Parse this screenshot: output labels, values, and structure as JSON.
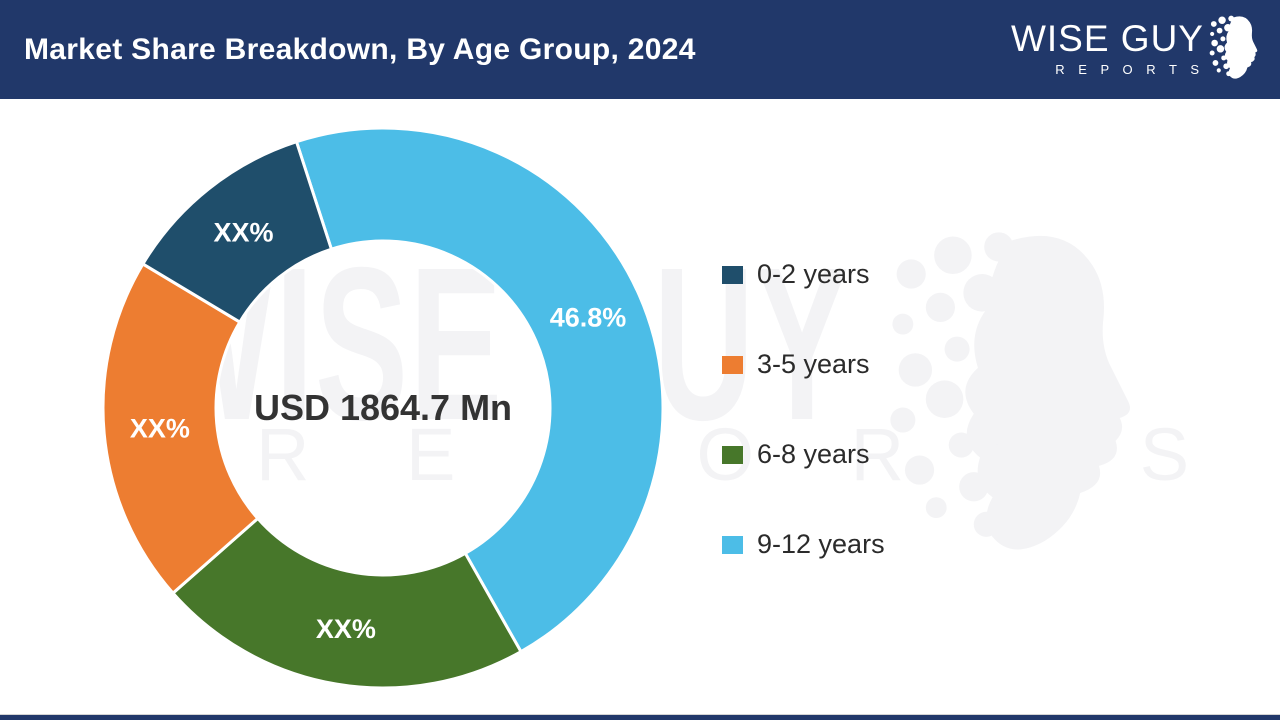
{
  "header": {
    "title": "Market Share Breakdown, By Age Group, 2024",
    "logo": {
      "name": "WISE GUY",
      "tagline": "R E P O R T S"
    }
  },
  "watermark": {
    "text_primary": "WISE GUY",
    "text_secondary": "R E P O R T S"
  },
  "chart_data": {
    "type": "pie",
    "subtype": "donut",
    "title": "Market Share Breakdown, By Age Group, 2024",
    "center_label": "USD 1864.7 Mn",
    "start_angle_deg": -18,
    "legend_position": "right",
    "segments": [
      {
        "label": "0-2 years",
        "value_pct": 11.4,
        "display_label": "XX%",
        "color": "#1f4e6b"
      },
      {
        "label": "3-5 years",
        "value_pct": 20.1,
        "display_label": "XX%",
        "color": "#ed7d31"
      },
      {
        "label": "6-8 years",
        "value_pct": 21.7,
        "display_label": "XX%",
        "color": "#47772a"
      },
      {
        "label": "9-12 years",
        "value_pct": 46.8,
        "display_label": "46.8%",
        "color": "#4cbde7"
      }
    ]
  },
  "colors": {
    "header_bg": "#21386a",
    "footer_bg": "#21386a",
    "slice_gap": "#ffffff",
    "center_text": "#333333",
    "legend_text": "#2b2b2b",
    "watermark": "#f3f3f5"
  }
}
